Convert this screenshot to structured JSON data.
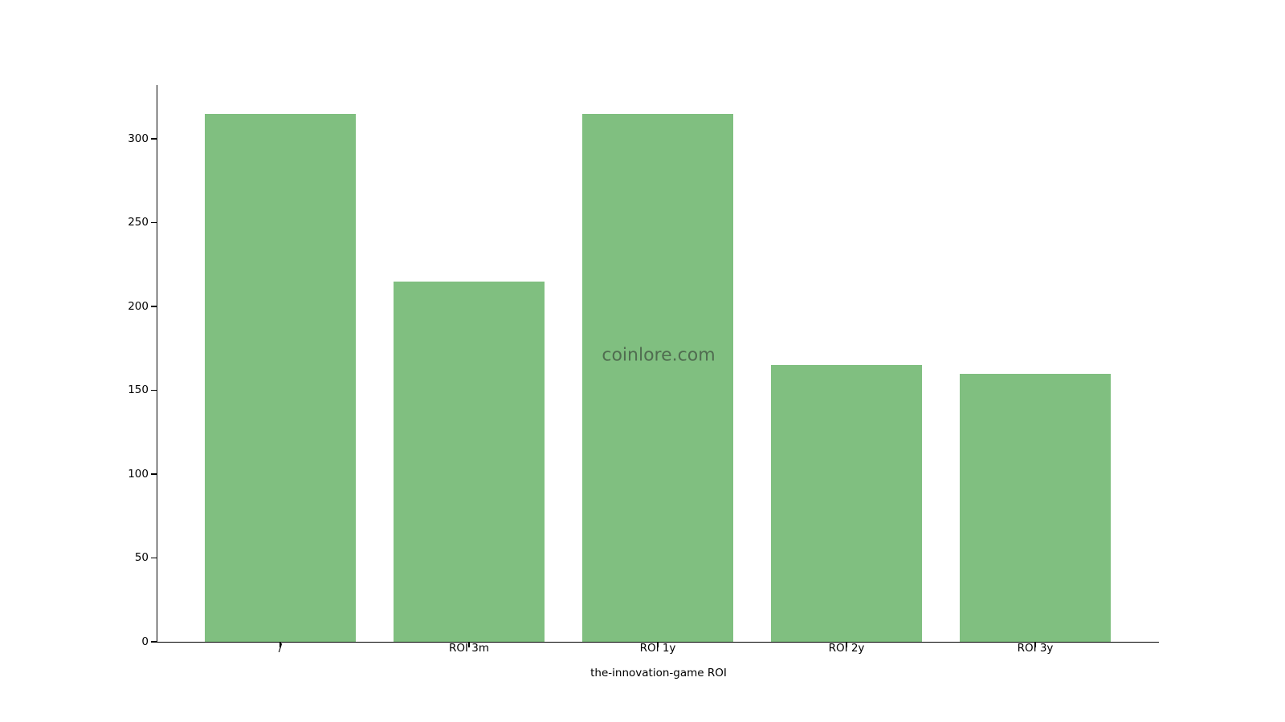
{
  "page": {
    "background": "#ffffff"
  },
  "chart_data": {
    "type": "bar",
    "title": "",
    "xlabel": "the-innovation-game ROI",
    "ylabel": "",
    "categories": [
      "/",
      "ROI 3m",
      "ROI 1y",
      "ROI 2y",
      "ROI 3y"
    ],
    "values": [
      315,
      215,
      315,
      165,
      160
    ],
    "yticks": [
      0,
      50,
      100,
      150,
      200,
      250,
      300
    ],
    "ylim": [
      0,
      332
    ],
    "grid": false,
    "legend_position": "none",
    "bar_color": "#80bf80",
    "axis_color": "#000000",
    "watermark": "coinlore.com",
    "watermark_color": "rgba(40, 40, 40, 0.55)"
  }
}
